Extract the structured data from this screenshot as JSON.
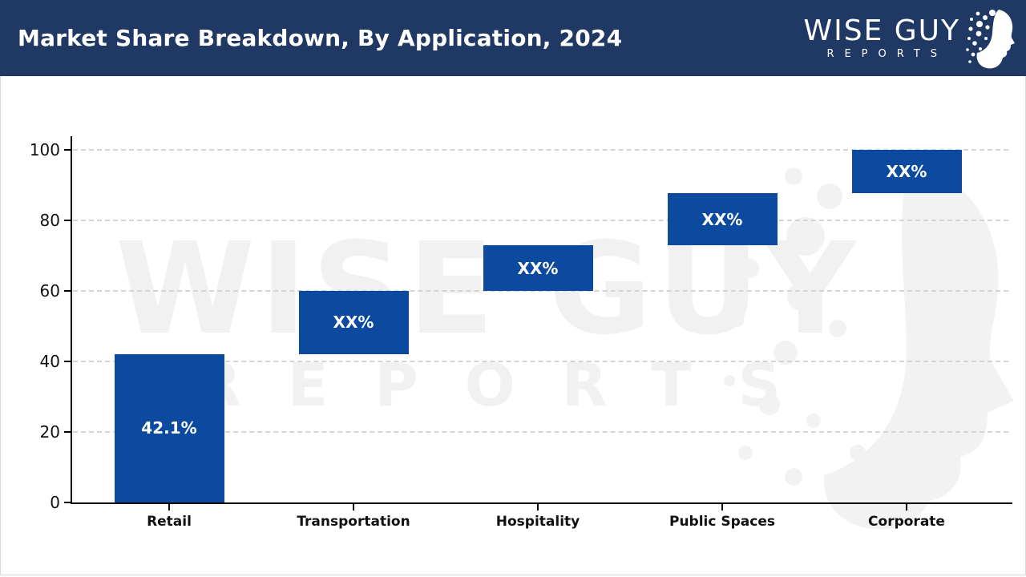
{
  "header": {
    "title": "Market Share Breakdown, By Application, 2024",
    "bg_color": "#1f3864",
    "logo_line1": "WISE GUY",
    "logo_line2": "REPORTS"
  },
  "watermark": {
    "line1": "WISE GUY",
    "line2": "REPORTS"
  },
  "chart_data": {
    "type": "bar",
    "variant": "waterfall",
    "title": "Market Share Breakdown, By Application, 2024",
    "categories": [
      "Retail",
      "Transportation",
      "Hospitality",
      "Public Spaces",
      "Corporate"
    ],
    "bars": [
      {
        "category": "Retail",
        "start": 0,
        "end": 42.1,
        "label": "42.1%"
      },
      {
        "category": "Transportation",
        "start": 42.1,
        "end": 60.0,
        "label": "XX%"
      },
      {
        "category": "Hospitality",
        "start": 60.0,
        "end": 72.9,
        "label": "XX%"
      },
      {
        "category": "Public Spaces",
        "start": 72.9,
        "end": 87.7,
        "label": "XX%"
      },
      {
        "category": "Corporate",
        "start": 87.7,
        "end": 100.0,
        "label": "XX%"
      }
    ],
    "xlabel": "",
    "ylabel": "",
    "yticks": [
      0,
      20,
      40,
      60,
      80,
      100
    ],
    "ylim": [
      0,
      104
    ],
    "grid": "horizontal-dashed",
    "legend": "none",
    "bar_color": "#0b4a9e",
    "bar_label_color": "#ffffff",
    "axis_color": "#000000",
    "gridline_color": "#d4d4d4"
  }
}
